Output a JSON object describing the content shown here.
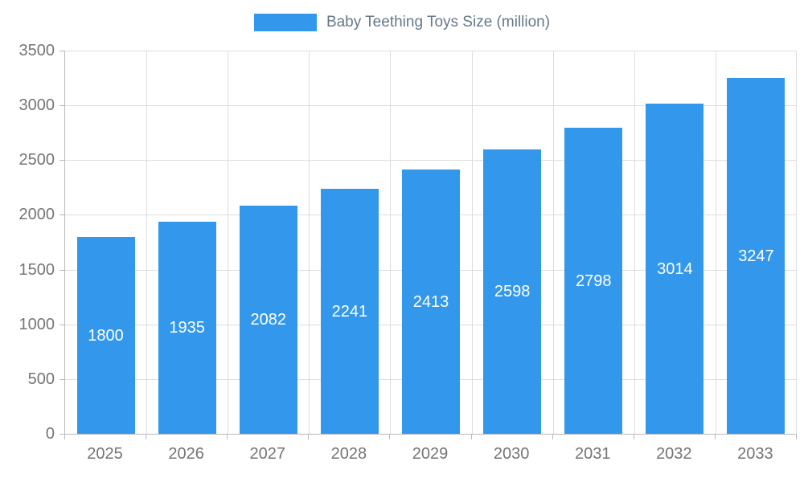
{
  "chart_data": {
    "type": "bar",
    "title": "Baby Teething Toys Size (million)",
    "categories": [
      "2025",
      "2026",
      "2027",
      "2028",
      "2029",
      "2030",
      "2031",
      "2032",
      "2033"
    ],
    "values": [
      1800,
      1935,
      2082,
      2241,
      2413,
      2598,
      2798,
      3014,
      3247
    ],
    "series_name": "Baby Teething Toys Size (million)",
    "xlabel": "",
    "ylabel": "",
    "ylim": [
      0,
      3500
    ],
    "yticks": [
      0,
      500,
      1000,
      1500,
      2000,
      2500,
      3000,
      3500
    ],
    "grid": true,
    "legend_position": "top-center",
    "value_labels": "inside-center",
    "colors": {
      "bar": "#3398ec",
      "bar_label_text": "#ffffff",
      "legend_text": "#667789",
      "axis_text": "#757575",
      "gridline": "#dddddd",
      "axis_line": "#b9b9b9",
      "background": "#ffffff"
    }
  }
}
